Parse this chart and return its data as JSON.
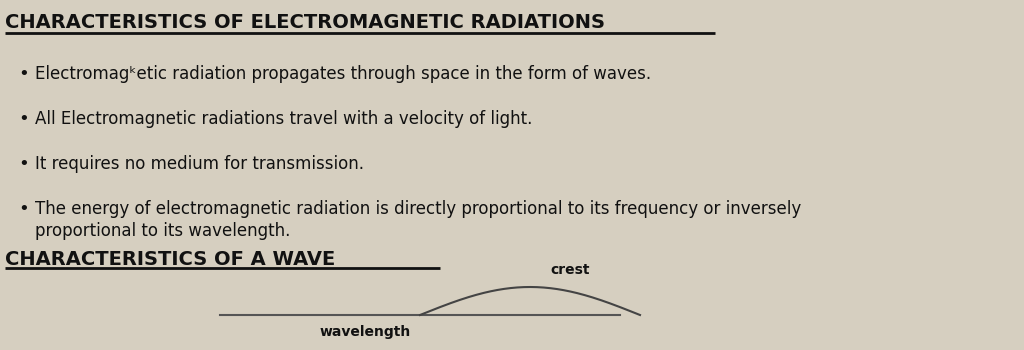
{
  "title": "CHARACTERISTICS OF ELECTROMAGNETIC RADIATIONS",
  "title2": "CHARACTERISTICS OF A WAVE",
  "bullet1": "Electromagᵏetic radiation propagates through space in the form of waves.",
  "bullet2": "All Electromagnetic radiations travel with a velocity of light.",
  "bullet3": "It requires no medium for transmission.",
  "bullet4_line1": "The energy of electromagnetic radiation is directly proportional to its frequency or inversely",
  "bullet4_line2": "proportional to its wavelength.",
  "wave_label1": "wavelength",
  "wave_label2": "crest",
  "bg_color": "#d6cfc0",
  "text_color": "#111111",
  "title_fontsize": 14,
  "bullet_fontsize": 12,
  "title2_fontsize": 14
}
